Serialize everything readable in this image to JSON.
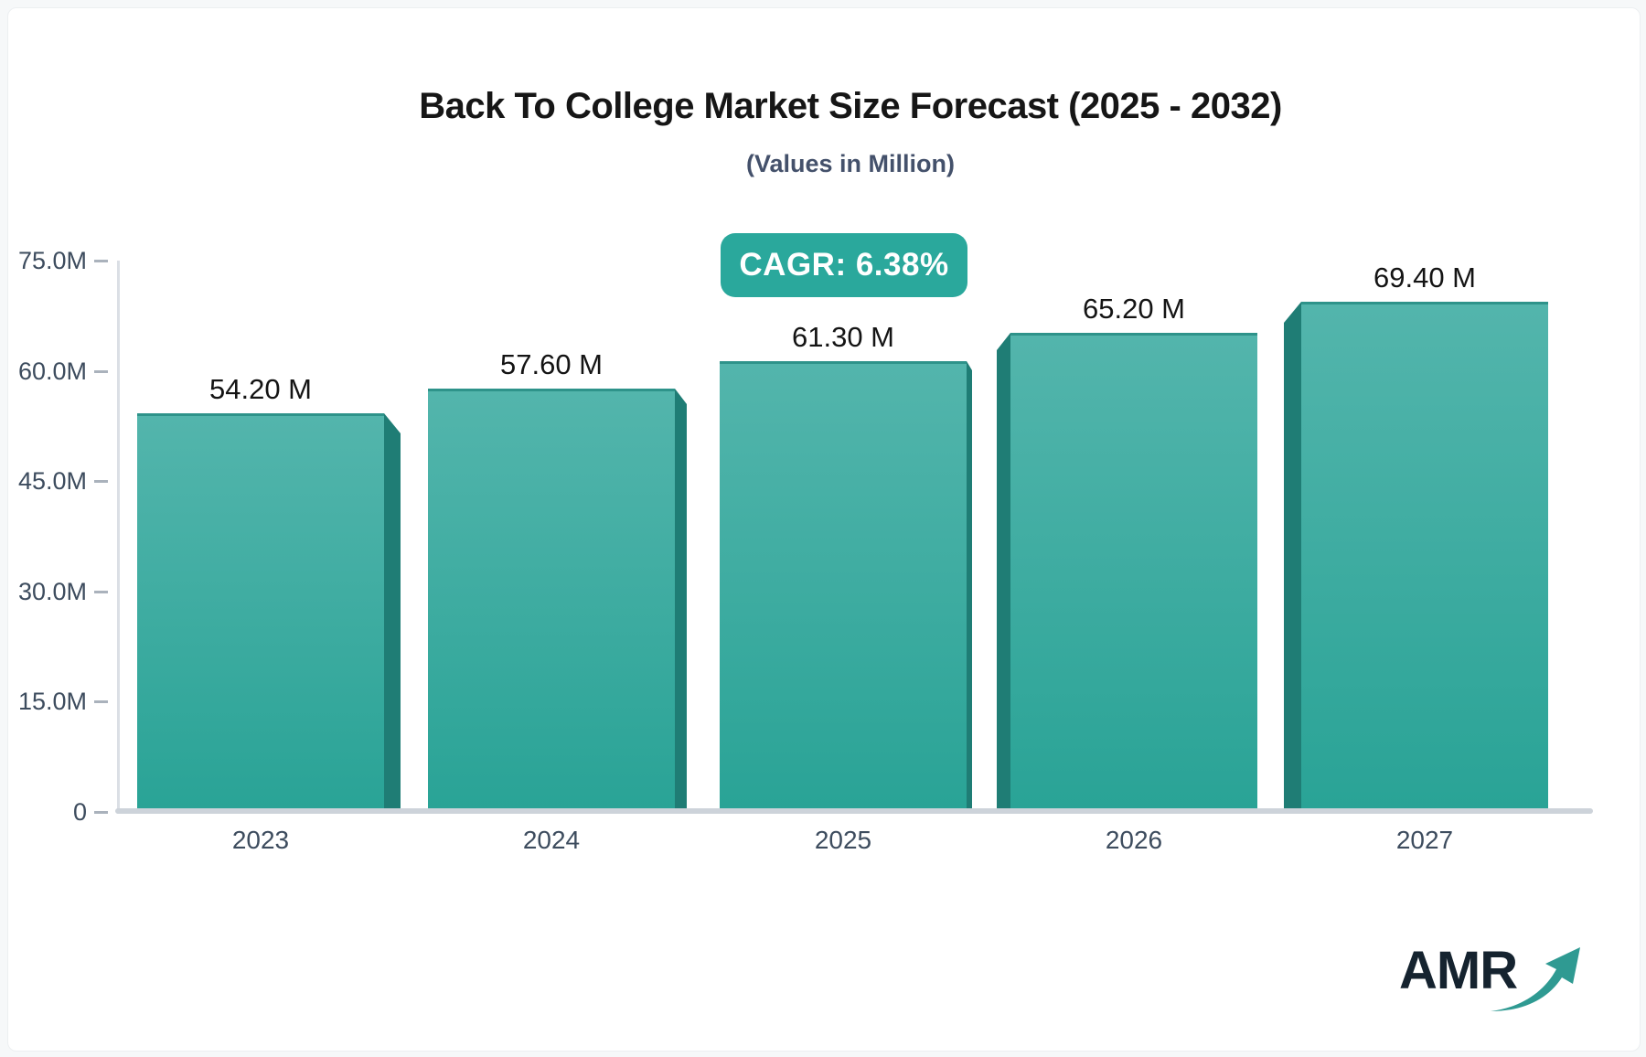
{
  "header": {
    "title": "Back To College Market Size Forecast (2025 - 2032)",
    "subtitle": "(Values in Million)"
  },
  "badge": {
    "label": "CAGR: 6.38%",
    "color": "#2aa89c"
  },
  "chart_data": {
    "type": "bar",
    "title": "Back To College Market Size Forecast (2025 - 2032)",
    "subtitle": "(Values in Million)",
    "annotation": "CAGR: 6.38%",
    "categories": [
      "2023",
      "2024",
      "2025",
      "2026",
      "2027"
    ],
    "values": [
      54.2,
      57.6,
      61.3,
      65.2,
      69.4
    ],
    "value_labels": [
      "54.20 M",
      "57.60 M",
      "61.30 M",
      "65.20 M",
      "69.40 M"
    ],
    "xlabel": "",
    "ylabel": "",
    "ylim": [
      0,
      75
    ],
    "yticks": [
      {
        "value": 75,
        "label": "75.0M"
      },
      {
        "value": 60,
        "label": "60.0M"
      },
      {
        "value": 45,
        "label": "45.0M"
      },
      {
        "value": 30,
        "label": "30.0M"
      },
      {
        "value": 15,
        "label": "15.0M"
      },
      {
        "value": 0,
        "label": "0"
      }
    ],
    "grid": false,
    "legend": false,
    "style": "pseudo-3d bars, center perspective",
    "colors": {
      "bar_gradient_top": "#53b5ac",
      "bar_gradient_bottom": "#29a396",
      "bar_top_edge": "#2e938a",
      "bar_side_face": "#1f7d75",
      "axis": "#cdd3da",
      "tick_text": "#3d4c5e",
      "value_text": "#141414"
    }
  },
  "logo": {
    "text": "AMR",
    "arrow_color": "#2f9a92"
  }
}
